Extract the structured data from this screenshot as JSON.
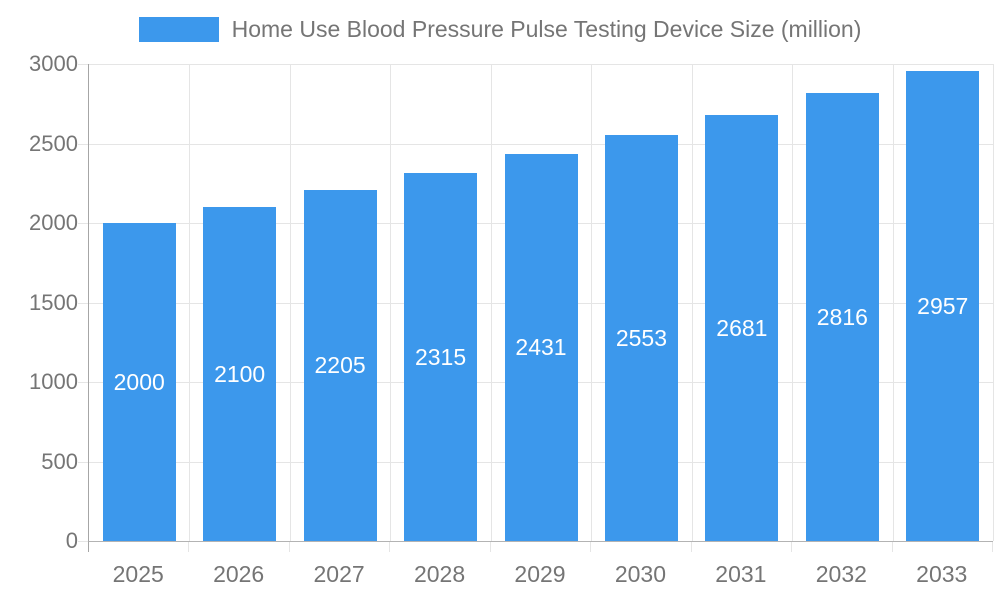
{
  "chart_data": {
    "type": "bar",
    "legend": "Home Use Blood Pressure Pulse Testing Device Size (million)",
    "legend_position": "top-center",
    "categories": [
      "2025",
      "2026",
      "2027",
      "2028",
      "2029",
      "2030",
      "2031",
      "2032",
      "2033"
    ],
    "values": [
      2000,
      2100,
      2205,
      2315,
      2431,
      2553,
      2681,
      2816,
      2957
    ],
    "value_labels_shown": true,
    "value_label_position": "center-of-bar",
    "xlabel": "",
    "ylabel": "",
    "ylim": [
      0,
      3000
    ],
    "yticks": [
      0,
      500,
      1000,
      1500,
      2000,
      2500,
      3000
    ],
    "grid": "horizontal-lines-and-vertical-category-separators",
    "colors": {
      "bar": "#3C98EC",
      "value_label": "#FFFFFF",
      "axis_text": "#757575",
      "gridline": "#E5E5E5",
      "axis_line": "#A6A6A6"
    }
  }
}
